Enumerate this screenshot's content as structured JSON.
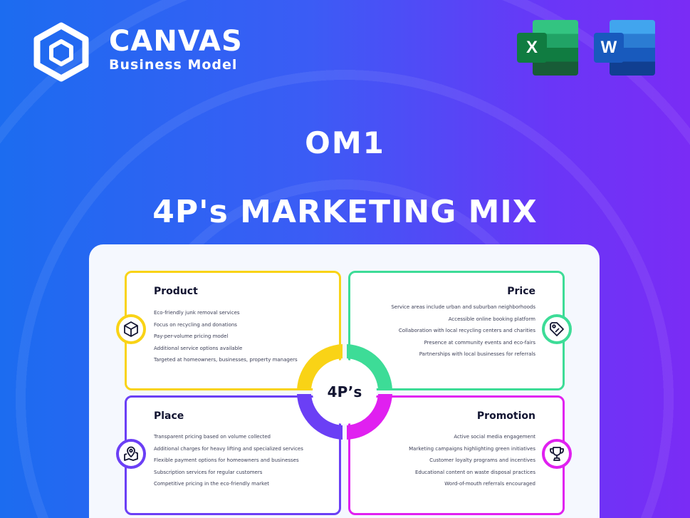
{
  "brand": {
    "name": "CANVAS",
    "subtitle": "Business Model"
  },
  "apps": [
    {
      "name": "Excel",
      "letter": "X",
      "color": "#107c41"
    },
    {
      "name": "Word",
      "letter": "W",
      "color": "#185abd"
    }
  ],
  "title": "OM1",
  "subtitle": "4P's MARKETING MIX",
  "center_label": "4P’s",
  "quadrants": [
    {
      "title": "Product",
      "color": "#f9d316",
      "icon": "cube-icon",
      "items": [
        "Eco-friendly junk removal services",
        "Focus on recycling and donations",
        "Pay-per-volume pricing model",
        "Additional service options available",
        "Targeted at homeowners, businesses, property managers"
      ]
    },
    {
      "title": "Price",
      "color": "#3ddc97",
      "icon": "price-tag-icon",
      "items": [
        "Service areas include urban and suburban neighborhoods",
        "Accessible online booking platform",
        "Collaboration with local recycling centers and charities",
        "Presence at community events and eco-fairs",
        "Partnerships with local businesses for referrals"
      ]
    },
    {
      "title": "Place",
      "color": "#6b3ff5",
      "icon": "map-pin-icon",
      "items": [
        "Transparent pricing based on volume collected",
        "Additional charges for heavy lifting and specialized services",
        "Flexible payment options for homeowners and businesses",
        "Subscription services for regular customers",
        "Competitive pricing in the eco-friendly market"
      ]
    },
    {
      "title": "Promotion",
      "color": "#e020f0",
      "icon": "trophy-icon",
      "items": [
        "Active social media engagement",
        "Marketing campaigns highlighting green initiatives",
        "Customer loyalty programs and incentives",
        "Educational content on waste disposal practices",
        "Word-of-mouth referrals encouraged"
      ]
    }
  ]
}
